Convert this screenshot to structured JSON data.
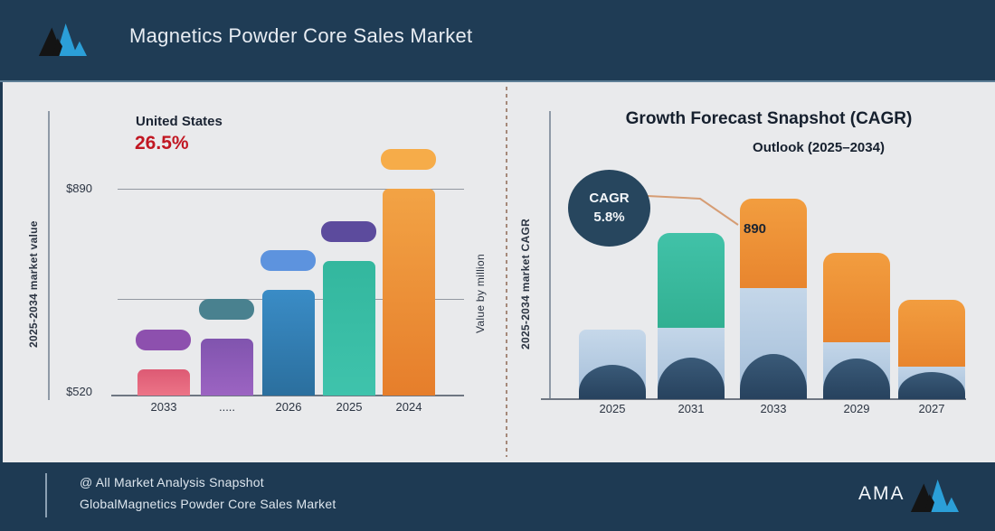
{
  "header": {
    "title": "Magnetics Powder Core Sales Market"
  },
  "left_chart": {
    "region_label": "United States",
    "highlight_value": "26.5%",
    "y_axis_title": "2025-2034 market value",
    "y_tick_top": "$890",
    "y_tick_bottom": "$520"
  },
  "divider": {
    "left_label": "Value by million"
  },
  "right_chart": {
    "title": "Growth Forecast Snapshot (CAGR)",
    "subtitle": "Outlook (2025–2034)",
    "y_axis_title": "2025-2034 market CAGR",
    "badge": {
      "line1": "CAGR",
      "line2": "5.8%"
    },
    "annotation": "890"
  },
  "footer": {
    "line1": "@ All Market Analysis Snapshot",
    "line2": "GlobalMagnetics Powder Core Sales Market",
    "brand": "AMA"
  },
  "chart_data": [
    {
      "type": "bar",
      "title": "United States market value",
      "categories": [
        "2033",
        ".....",
        "2026",
        "2025",
        "2024"
      ],
      "values": [
        567,
        622,
        709,
        761,
        890
      ],
      "ylabel": "2025-2034 market value",
      "ylim": [
        520,
        890
      ],
      "y_ticks": [
        "$520",
        "$890"
      ],
      "grid": "horizontal, gridlines at $890 and one unlabeled mid-line (~700)",
      "legend": "none",
      "annotations": [
        "26.5% highlighted in red for United States"
      ]
    },
    {
      "type": "bar",
      "subtype": "stacked",
      "title": "Growth Forecast Snapshot (CAGR)",
      "subtitle": "Outlook (2025–2034)",
      "categories": [
        "2025",
        "2031",
        "2033",
        "2029",
        "2027"
      ],
      "series": [
        {
          "name": "base",
          "values": [
            152,
            184,
            200,
            180,
            120
          ]
        },
        {
          "name": "mid",
          "values": [
            156,
            156,
            317,
            96,
            48
          ]
        },
        {
          "name": "top",
          "values": [
            0,
            397,
            373,
            373,
            273
          ]
        }
      ],
      "totals": [
        308,
        737,
        890,
        649,
        441
      ],
      "top_segment_palette": [
        "none",
        "teal",
        "orange",
        "orange",
        "orange"
      ],
      "ylabel": "2025-2034 market CAGR",
      "grid": "off",
      "legend": "none",
      "annotations": [
        "CAGR 5.8% badge with callout line to 2033 bar labeled 890"
      ]
    }
  ],
  "colors": {
    "header_bg": "#1f3c55",
    "content_bg": "#e9eaec",
    "accent_red": "#c11722",
    "badge_navy": "#27465e",
    "callout_line": "#d69d74",
    "logo_black": "#141414",
    "logo_blue": "#2b9fd8",
    "left_bars": [
      {
        "main_top": "#dd5a74",
        "main_bottom": "#ec7487",
        "cap": "#8d50ae"
      },
      {
        "main_top": "#8054ae",
        "main_bottom": "#9c64c2",
        "cap": "#49818f"
      },
      {
        "main_top": "#3a8cc6",
        "main_bottom": "#2b6f9e",
        "cap": "#5d93de"
      },
      {
        "main_top": "#33b79e",
        "main_bottom": "#3fc3ac",
        "cap": "#5c4b9d"
      },
      {
        "main_top": "#f2a345",
        "main_bottom": "#e67e2b",
        "cap": "#f6ac49"
      }
    ],
    "right_segments": {
      "base_top": "#3a5a78",
      "base_bottom": "#27425e",
      "mid_top": "#c6d8ea",
      "mid_bottom": "#a3bdd8",
      "teal_top": "#41c2a8",
      "teal_bottom": "#32b092",
      "orange_top": "#f29d3f",
      "orange_bottom": "#e8852e"
    }
  }
}
